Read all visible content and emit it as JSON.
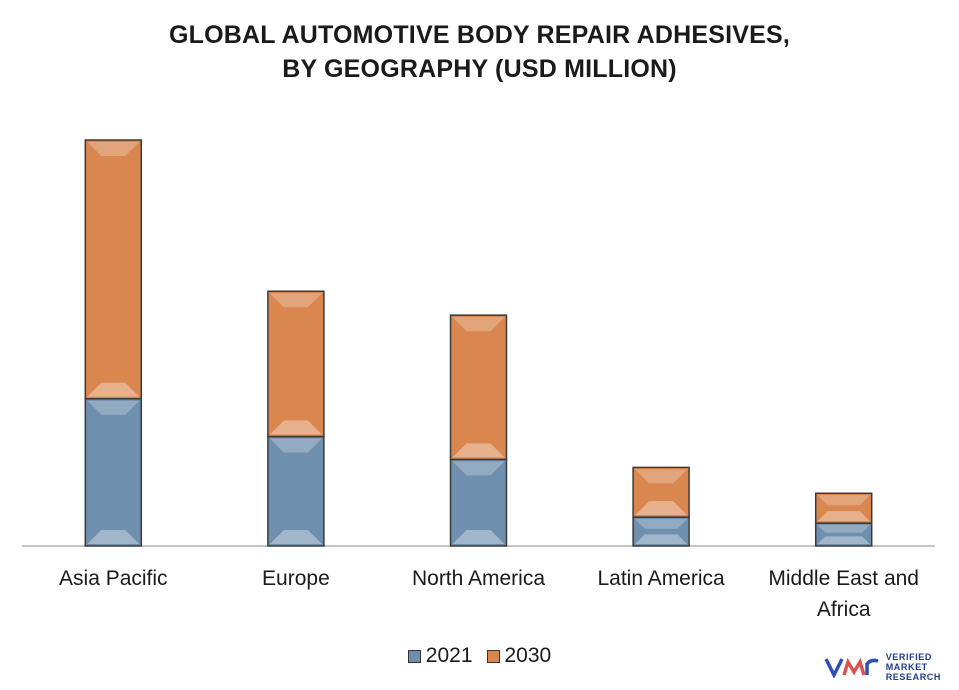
{
  "title_line1": "GLOBAL AUTOMOTIVE BODY REPAIR ADHESIVES,",
  "title_line2": "BY GEOGRAPHY (USD MILLION)",
  "colors": {
    "s2021": "#6f8fae",
    "s2030": "#d9874f",
    "axis": "#888888"
  },
  "logo": {
    "line1": "VERIFIED",
    "line2": "MARKET",
    "line3": "RESEARCH"
  },
  "chart_data": {
    "type": "bar",
    "stacked": true,
    "categories": [
      "Asia Pacific",
      "Europe",
      "North America",
      "Latin America",
      "Middle East and Africa"
    ],
    "category_lines": [
      [
        "Asia Pacific"
      ],
      [
        "Europe"
      ],
      [
        "North America"
      ],
      [
        "Latin America"
      ],
      [
        "Middle East and",
        "Africa"
      ]
    ],
    "series": [
      {
        "name": "2021",
        "values": [
          148,
          110,
          87,
          29,
          23
        ]
      },
      {
        "name": "2030",
        "values": [
          260,
          146,
          145,
          50,
          30
        ]
      }
    ],
    "ylim": [
      0,
      410
    ],
    "grid": false,
    "legend": "bottom-center"
  }
}
